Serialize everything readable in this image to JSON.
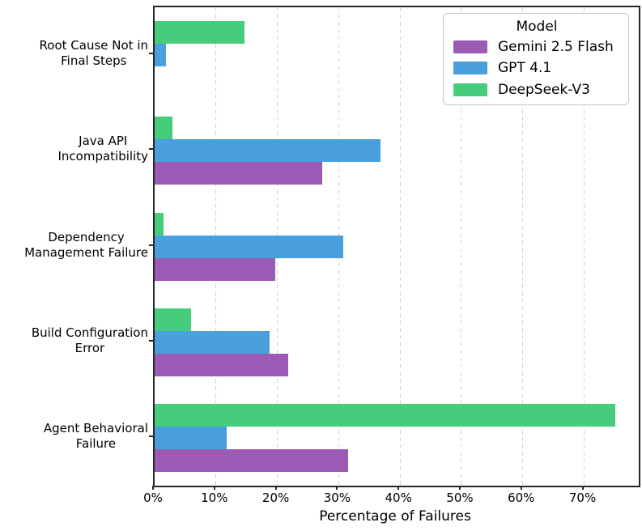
{
  "chart_data": {
    "type": "bar",
    "orientation": "horizontal",
    "title": "",
    "xlabel": "Percentage of Failures",
    "ylabel": "",
    "xlim": [
      0,
      78.9
    ],
    "xticks": [
      {
        "value": 0,
        "label": "0%"
      },
      {
        "value": 10,
        "label": "10%"
      },
      {
        "value": 20,
        "label": "20%"
      },
      {
        "value": 30,
        "label": "30%"
      },
      {
        "value": 40,
        "label": "40%"
      },
      {
        "value": 50,
        "label": "50%"
      },
      {
        "value": 60,
        "label": "60%"
      },
      {
        "value": 70,
        "label": "70%"
      }
    ],
    "grid": "vertical-dashed",
    "gridline_color": "#d2d2d2",
    "categories": [
      {
        "lines": [
          "Root Cause Not in",
          "Final Steps"
        ]
      },
      {
        "lines": [
          "Java API",
          "Incompatibility"
        ]
      },
      {
        "lines": [
          "Dependency",
          "Management Failure"
        ]
      },
      {
        "lines": [
          "Build Configuration",
          "Error"
        ]
      },
      {
        "lines": [
          "Agent Behavioral",
          "Failure"
        ]
      }
    ],
    "series": [
      {
        "name": "Gemini 2.5 Flash",
        "color": "#9b5ab4",
        "values": [
          0.0,
          27.3,
          19.6,
          21.8,
          31.5
        ]
      },
      {
        "name": "GPT 4.1",
        "color": "#4aa0dc",
        "values": [
          1.8,
          36.8,
          30.7,
          18.8,
          11.8
        ]
      },
      {
        "name": "DeepSeek-V3",
        "color": "#45cd7c",
        "values": [
          14.6,
          2.9,
          1.5,
          5.9,
          75.1
        ]
      }
    ],
    "bar_order_top_to_bottom": [
      "DeepSeek-V3",
      "GPT 4.1",
      "Gemini 2.5 Flash"
    ],
    "legend": {
      "title": "Model",
      "position": "upper-right"
    }
  }
}
